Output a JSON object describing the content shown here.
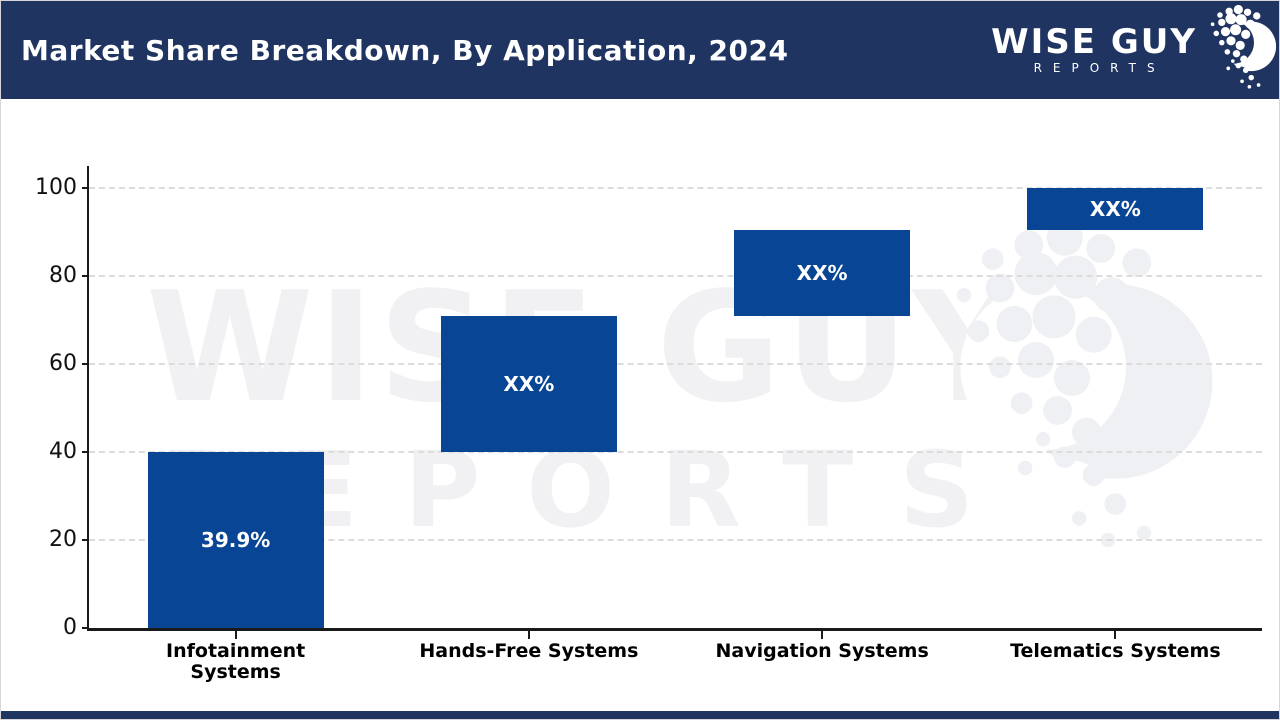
{
  "header": {
    "title": "Market Share Breakdown, By Application, 2024",
    "bg_color": "#1f3461",
    "logo": {
      "line1": "WISE GUY",
      "line2": "REPORTS"
    }
  },
  "watermark": {
    "line1": "WISE GUY",
    "line2": "REPORTS"
  },
  "footer": {
    "bg_color": "#1f3461"
  },
  "chart_data": {
    "type": "bar",
    "subtype": "waterfall",
    "title": "Market Share Breakdown, By Application, 2024",
    "categories": [
      "Infotainment Systems",
      "Hands-Free Systems",
      "Navigation Systems",
      "Telematics Systems"
    ],
    "category_display": [
      "Infotainment\nSystems",
      "Hands-Free Systems",
      "Navigation Systems",
      "Telematics Systems"
    ],
    "segments": [
      {
        "start": 0,
        "end": 39.9,
        "label": "39.9%",
        "value_estimate": 39.9
      },
      {
        "start": 39.9,
        "end": 70.9,
        "label": "XX%",
        "value_estimate": 31.0
      },
      {
        "start": 70.9,
        "end": 90.4,
        "label": "XX%",
        "value_estimate": 19.5
      },
      {
        "start": 90.4,
        "end": 100,
        "label": "XX%",
        "value_estimate": 9.6
      }
    ],
    "xlabel": "",
    "ylabel": "",
    "ylim": [
      0,
      100
    ],
    "yticks": [
      0,
      20,
      40,
      60,
      80,
      100
    ],
    "grid": "horizontal-dashed",
    "legend": "none",
    "bar_color": "#084595",
    "bar_label_color": "#ffffff",
    "axis_color": "#1a1a1a",
    "grid_color": "#dcdcdc"
  }
}
